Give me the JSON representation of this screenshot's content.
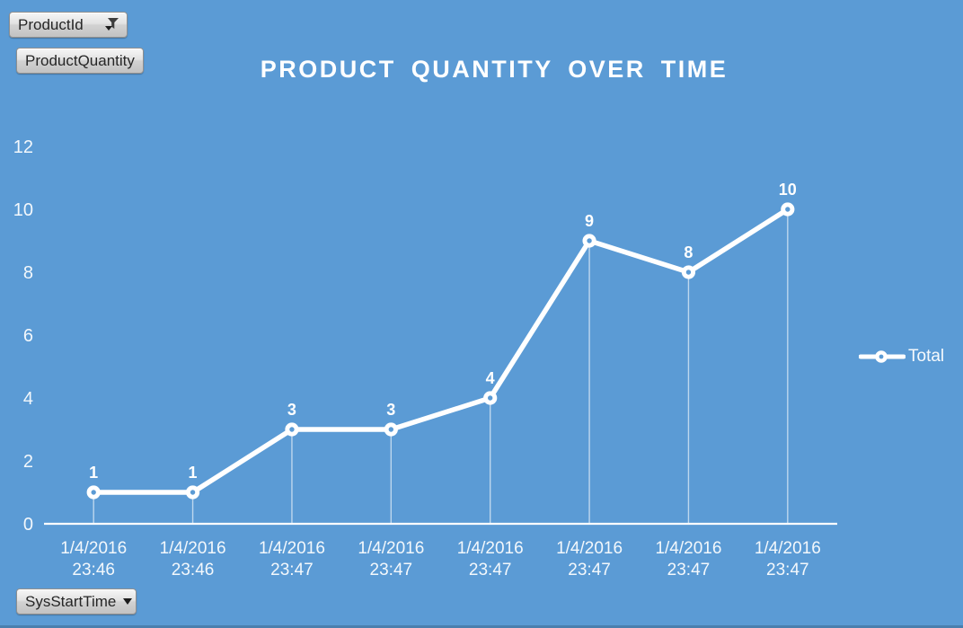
{
  "title": "PRODUCT QUANTITY OVER TIME",
  "field_buttons": {
    "product_id": "ProductId",
    "product_quantity": "ProductQuantity",
    "sys_start_time": "SysStartTime"
  },
  "chart_data": {
    "type": "line",
    "title": "PRODUCT QUANTITY OVER TIME",
    "categories": [
      "1/4/2016 23:46",
      "1/4/2016 23:46",
      "1/4/2016 23:47",
      "1/4/2016 23:47",
      "1/4/2016 23:47",
      "1/4/2016 23:47",
      "1/4/2016 23:47",
      "1/4/2016 23:47"
    ],
    "series": [
      {
        "name": "Total",
        "values": [
          1,
          1,
          3,
          3,
          4,
          9,
          8,
          10
        ]
      }
    ],
    "xlabel": "SysStartTime",
    "ylabel": "",
    "ylim": [
      0,
      12
    ],
    "ytick_step": 2,
    "ytick_labels": [
      "0",
      "2",
      "4",
      "6",
      "8",
      "10",
      "12"
    ],
    "gridlines": false,
    "data_labels": true,
    "drop_lines": true,
    "marker": "circle-donut",
    "legend_position": "right",
    "series_color": "#FFFFFF",
    "background": "#5B9BD5"
  },
  "colors": {
    "background": "#5B9BD5",
    "series": "#FFFFFF",
    "button_text": "#262626",
    "axis_text": "#EAF2FA"
  }
}
